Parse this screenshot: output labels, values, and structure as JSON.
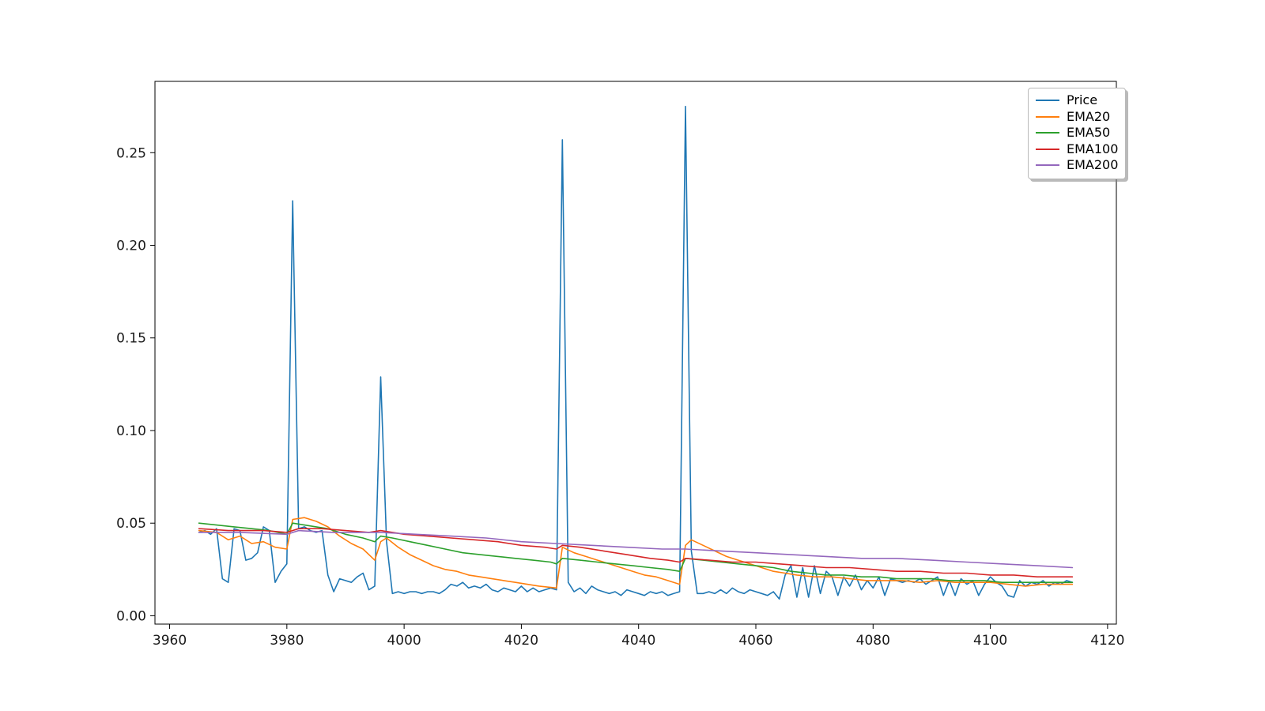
{
  "page": {
    "background": "#ffffff"
  },
  "chart_data": {
    "type": "line",
    "title": "",
    "xlabel": "",
    "ylabel": "",
    "xlim": [
      3957.5,
      4121.5
    ],
    "ylim": [
      -0.0045,
      0.2885
    ],
    "xticks": [
      3960,
      3980,
      4000,
      4020,
      4040,
      4060,
      4080,
      4100,
      4120
    ],
    "yticks": [
      0.0,
      0.05,
      0.1,
      0.15,
      0.2,
      0.25
    ],
    "grid": false,
    "legend": {
      "position": "upper right",
      "entries": [
        "Price",
        "EMA20",
        "EMA50",
        "EMA100",
        "EMA200"
      ]
    },
    "series": [
      {
        "name": "Price",
        "color": "#1f77b4",
        "x_start": 3965,
        "x_step": 1,
        "values": [
          0.045,
          0.046,
          0.044,
          0.047,
          0.02,
          0.018,
          0.047,
          0.046,
          0.03,
          0.031,
          0.034,
          0.048,
          0.046,
          0.018,
          0.024,
          0.028,
          0.224,
          0.047,
          0.048,
          0.046,
          0.045,
          0.046,
          0.022,
          0.013,
          0.02,
          0.019,
          0.018,
          0.021,
          0.023,
          0.014,
          0.016,
          0.129,
          0.04,
          0.012,
          0.013,
          0.012,
          0.013,
          0.013,
          0.012,
          0.013,
          0.013,
          0.012,
          0.014,
          0.017,
          0.016,
          0.018,
          0.015,
          0.016,
          0.015,
          0.017,
          0.014,
          0.013,
          0.015,
          0.014,
          0.013,
          0.016,
          0.013,
          0.015,
          0.013,
          0.014,
          0.015,
          0.014,
          0.257,
          0.018,
          0.013,
          0.015,
          0.012,
          0.016,
          0.014,
          0.013,
          0.012,
          0.013,
          0.011,
          0.014,
          0.013,
          0.012,
          0.011,
          0.013,
          0.012,
          0.013,
          0.011,
          0.012,
          0.013,
          0.275,
          0.035,
          0.012,
          0.012,
          0.013,
          0.012,
          0.014,
          0.012,
          0.015,
          0.013,
          0.012,
          0.014,
          0.013,
          0.012,
          0.011,
          0.013,
          0.009,
          0.022,
          0.027,
          0.01,
          0.026,
          0.01,
          0.027,
          0.012,
          0.024,
          0.021,
          0.011,
          0.021,
          0.016,
          0.022,
          0.014,
          0.019,
          0.015,
          0.021,
          0.011,
          0.02,
          0.019,
          0.018,
          0.019,
          0.018,
          0.02,
          0.017,
          0.019,
          0.021,
          0.011,
          0.019,
          0.011,
          0.02,
          0.017,
          0.019,
          0.011,
          0.017,
          0.021,
          0.018,
          0.016,
          0.011,
          0.01,
          0.019,
          0.016,
          0.018,
          0.017,
          0.019,
          0.016,
          0.018,
          0.017,
          0.019,
          0.018
        ]
      },
      {
        "name": "EMA20",
        "color": "#ff7f0e",
        "points": [
          [
            3965,
            0.046
          ],
          [
            3968,
            0.045
          ],
          [
            3970,
            0.041
          ],
          [
            3972,
            0.043
          ],
          [
            3974,
            0.039
          ],
          [
            3976,
            0.04
          ],
          [
            3978,
            0.037
          ],
          [
            3980,
            0.036
          ],
          [
            3981,
            0.052
          ],
          [
            3983,
            0.053
          ],
          [
            3985,
            0.051
          ],
          [
            3987,
            0.048
          ],
          [
            3989,
            0.043
          ],
          [
            3991,
            0.039
          ],
          [
            3993,
            0.036
          ],
          [
            3995,
            0.03
          ],
          [
            3996,
            0.04
          ],
          [
            3997,
            0.042
          ],
          [
            3999,
            0.037
          ],
          [
            4001,
            0.033
          ],
          [
            4003,
            0.03
          ],
          [
            4005,
            0.027
          ],
          [
            4007,
            0.025
          ],
          [
            4009,
            0.024
          ],
          [
            4011,
            0.022
          ],
          [
            4013,
            0.021
          ],
          [
            4015,
            0.02
          ],
          [
            4017,
            0.019
          ],
          [
            4019,
            0.018
          ],
          [
            4021,
            0.017
          ],
          [
            4023,
            0.016
          ],
          [
            4026,
            0.015
          ],
          [
            4027,
            0.037
          ],
          [
            4029,
            0.034
          ],
          [
            4031,
            0.032
          ],
          [
            4033,
            0.03
          ],
          [
            4035,
            0.028
          ],
          [
            4037,
            0.026
          ],
          [
            4039,
            0.024
          ],
          [
            4041,
            0.022
          ],
          [
            4043,
            0.021
          ],
          [
            4045,
            0.019
          ],
          [
            4047,
            0.017
          ],
          [
            4048,
            0.038
          ],
          [
            4049,
            0.041
          ],
          [
            4051,
            0.038
          ],
          [
            4053,
            0.035
          ],
          [
            4055,
            0.032
          ],
          [
            4057,
            0.03
          ],
          [
            4059,
            0.028
          ],
          [
            4061,
            0.026
          ],
          [
            4063,
            0.024
          ],
          [
            4065,
            0.023
          ],
          [
            4067,
            0.022
          ],
          [
            4070,
            0.021
          ],
          [
            4073,
            0.021
          ],
          [
            4076,
            0.02
          ],
          [
            4079,
            0.019
          ],
          [
            4082,
            0.019
          ],
          [
            4085,
            0.019
          ],
          [
            4088,
            0.018
          ],
          [
            4091,
            0.019
          ],
          [
            4094,
            0.018
          ],
          [
            4097,
            0.018
          ],
          [
            4100,
            0.018
          ],
          [
            4103,
            0.017
          ],
          [
            4106,
            0.016
          ],
          [
            4109,
            0.017
          ],
          [
            4112,
            0.017
          ],
          [
            4114,
            0.017
          ]
        ]
      },
      {
        "name": "EMA50",
        "color": "#2ca02c",
        "points": [
          [
            3965,
            0.05
          ],
          [
            3968,
            0.049
          ],
          [
            3971,
            0.048
          ],
          [
            3974,
            0.047
          ],
          [
            3977,
            0.046
          ],
          [
            3980,
            0.044
          ],
          [
            3981,
            0.05
          ],
          [
            3983,
            0.049
          ],
          [
            3985,
            0.048
          ],
          [
            3987,
            0.047
          ],
          [
            3990,
            0.044
          ],
          [
            3993,
            0.042
          ],
          [
            3995,
            0.04
          ],
          [
            3996,
            0.043
          ],
          [
            3998,
            0.042
          ],
          [
            4001,
            0.04
          ],
          [
            4004,
            0.038
          ],
          [
            4007,
            0.036
          ],
          [
            4010,
            0.034
          ],
          [
            4013,
            0.033
          ],
          [
            4016,
            0.032
          ],
          [
            4019,
            0.031
          ],
          [
            4022,
            0.03
          ],
          [
            4025,
            0.029
          ],
          [
            4026,
            0.028
          ],
          [
            4027,
            0.031
          ],
          [
            4030,
            0.03
          ],
          [
            4033,
            0.029
          ],
          [
            4036,
            0.028
          ],
          [
            4039,
            0.027
          ],
          [
            4042,
            0.026
          ],
          [
            4045,
            0.025
          ],
          [
            4047,
            0.024
          ],
          [
            4048,
            0.031
          ],
          [
            4051,
            0.03
          ],
          [
            4054,
            0.029
          ],
          [
            4057,
            0.028
          ],
          [
            4060,
            0.027
          ],
          [
            4063,
            0.026
          ],
          [
            4066,
            0.024
          ],
          [
            4069,
            0.023
          ],
          [
            4072,
            0.022
          ],
          [
            4075,
            0.022
          ],
          [
            4078,
            0.021
          ],
          [
            4081,
            0.021
          ],
          [
            4084,
            0.02
          ],
          [
            4087,
            0.02
          ],
          [
            4090,
            0.02
          ],
          [
            4093,
            0.019
          ],
          [
            4096,
            0.019
          ],
          [
            4099,
            0.019
          ],
          [
            4102,
            0.018
          ],
          [
            4105,
            0.018
          ],
          [
            4108,
            0.018
          ],
          [
            4111,
            0.018
          ],
          [
            4114,
            0.018
          ]
        ]
      },
      {
        "name": "EMA100",
        "color": "#d62728",
        "points": [
          [
            3965,
            0.047
          ],
          [
            3970,
            0.046
          ],
          [
            3976,
            0.046
          ],
          [
            3980,
            0.045
          ],
          [
            3982,
            0.047
          ],
          [
            3986,
            0.047
          ],
          [
            3990,
            0.046
          ],
          [
            3994,
            0.045
          ],
          [
            3996,
            0.046
          ],
          [
            4000,
            0.044
          ],
          [
            4004,
            0.043
          ],
          [
            4008,
            0.042
          ],
          [
            4012,
            0.041
          ],
          [
            4016,
            0.04
          ],
          [
            4020,
            0.038
          ],
          [
            4024,
            0.037
          ],
          [
            4026,
            0.036
          ],
          [
            4027,
            0.038
          ],
          [
            4030,
            0.037
          ],
          [
            4034,
            0.035
          ],
          [
            4038,
            0.033
          ],
          [
            4042,
            0.031
          ],
          [
            4045,
            0.03
          ],
          [
            4047,
            0.029
          ],
          [
            4048,
            0.031
          ],
          [
            4052,
            0.03
          ],
          [
            4056,
            0.029
          ],
          [
            4060,
            0.029
          ],
          [
            4064,
            0.028
          ],
          [
            4068,
            0.027
          ],
          [
            4072,
            0.026
          ],
          [
            4076,
            0.026
          ],
          [
            4080,
            0.025
          ],
          [
            4084,
            0.024
          ],
          [
            4088,
            0.024
          ],
          [
            4092,
            0.023
          ],
          [
            4096,
            0.023
          ],
          [
            4100,
            0.022
          ],
          [
            4104,
            0.022
          ],
          [
            4108,
            0.021
          ],
          [
            4112,
            0.021
          ],
          [
            4114,
            0.021
          ]
        ]
      },
      {
        "name": "EMA200",
        "color": "#9467bd",
        "points": [
          [
            3965,
            0.045
          ],
          [
            3972,
            0.045
          ],
          [
            3980,
            0.044
          ],
          [
            3982,
            0.046
          ],
          [
            3988,
            0.045
          ],
          [
            3994,
            0.045
          ],
          [
            3996,
            0.045
          ],
          [
            4002,
            0.044
          ],
          [
            4008,
            0.043
          ],
          [
            4014,
            0.042
          ],
          [
            4020,
            0.04
          ],
          [
            4026,
            0.039
          ],
          [
            4032,
            0.038
          ],
          [
            4038,
            0.037
          ],
          [
            4044,
            0.036
          ],
          [
            4048,
            0.036
          ],
          [
            4054,
            0.035
          ],
          [
            4060,
            0.034
          ],
          [
            4066,
            0.033
          ],
          [
            4072,
            0.032
          ],
          [
            4078,
            0.031
          ],
          [
            4084,
            0.031
          ],
          [
            4090,
            0.03
          ],
          [
            4096,
            0.029
          ],
          [
            4102,
            0.028
          ],
          [
            4108,
            0.027
          ],
          [
            4114,
            0.026
          ]
        ]
      }
    ]
  }
}
